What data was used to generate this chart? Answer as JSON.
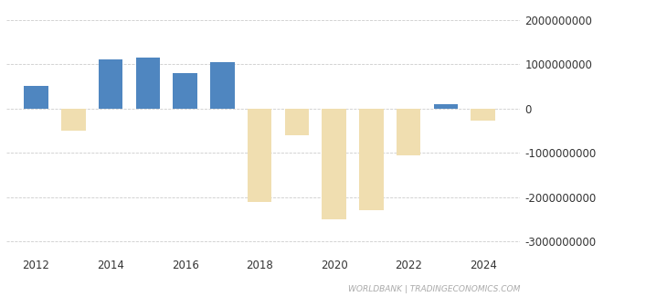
{
  "years": [
    2012,
    2013,
    2014,
    2015,
    2016,
    2017,
    2018,
    2019,
    2020,
    2021,
    2022,
    2023,
    2024
  ],
  "values": [
    500000000,
    -500000000,
    1100000000,
    1150000000,
    800000000,
    1050000000,
    -2100000000,
    -600000000,
    -2500000000,
    -2300000000,
    -1050000000,
    100000000,
    -280000000
  ],
  "bar_color_positive": "#4f86c0",
  "bar_color_negative": "#f0deb0",
  "background_color": "#ffffff",
  "grid_color": "#cccccc",
  "ylim": [
    -3300000000,
    2300000000
  ],
  "yticks": [
    -3000000000,
    -2000000000,
    -1000000000,
    0,
    1000000000,
    2000000000
  ],
  "xticks": [
    2012,
    2014,
    2016,
    2018,
    2020,
    2022,
    2024
  ],
  "watermark": "WORLDBANK | TRADINGECONOMICS.COM",
  "bar_width": 0.65
}
